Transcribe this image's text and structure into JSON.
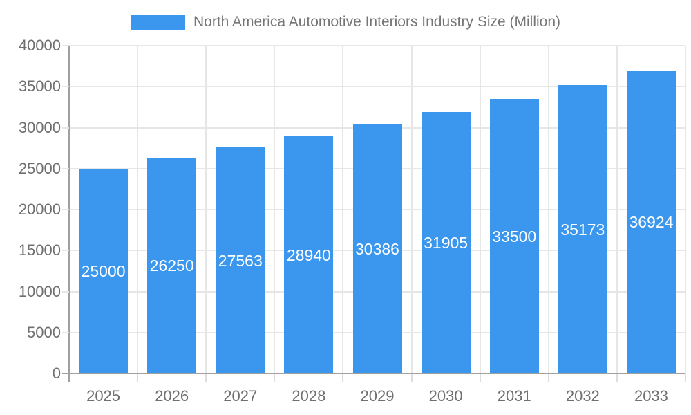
{
  "chart_data": {
    "type": "bar",
    "legend": "North America Automotive Interiors Industry Size (Million)",
    "legend_position": "top-center",
    "categories": [
      "2025",
      "2026",
      "2027",
      "2028",
      "2029",
      "2030",
      "2031",
      "2032",
      "2033"
    ],
    "series": [
      {
        "name": "North America Automotive Interiors Industry Size (Million)",
        "values": [
          25000,
          26250,
          27563,
          28940,
          30386,
          31905,
          33500,
          35173,
          36924
        ]
      }
    ],
    "value_labels": [
      "25000",
      "26250",
      "27563",
      "28940",
      "30386",
      "31905",
      "33500",
      "35173",
      "36924"
    ],
    "xlabel": "",
    "ylabel": "",
    "ylim": [
      0,
      40000
    ],
    "yticks": [
      0,
      5000,
      10000,
      15000,
      20000,
      25000,
      30000,
      35000,
      40000
    ],
    "grid": true,
    "colors": {
      "bar": "#3B97EE",
      "grid_line": "#E6E6E6",
      "axis_line": "#A0A0A0",
      "tick": "#DCDCDC",
      "axis_text": "#6F6F6F",
      "legend_text": "#757575",
      "value_label_text": "#FFFFFF",
      "background": "#FFFFFF"
    }
  }
}
